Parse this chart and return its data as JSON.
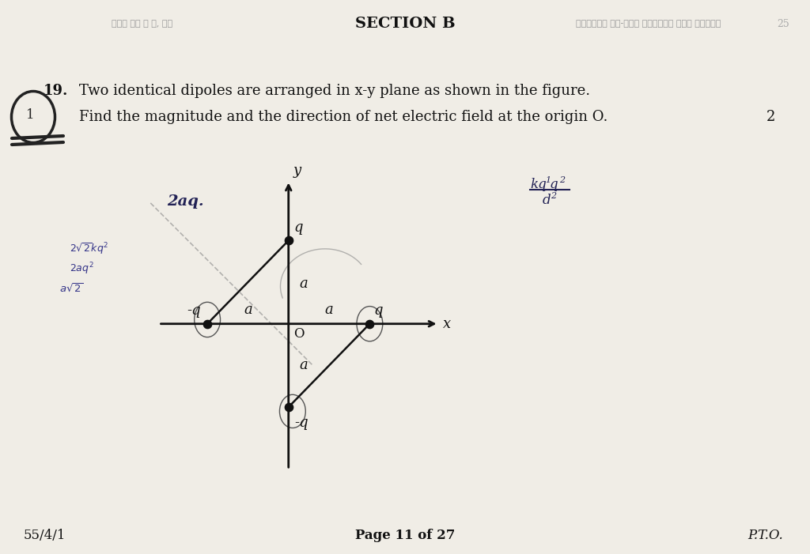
{
  "bg_color": "#e8e4dc",
  "page_bg": "#f0ede6",
  "title": "SECTION B",
  "q_num": "19.",
  "q_line1": "Two identical dipoles are arranged in x-y plane as shown in the figure.",
  "q_line2": "Find the magnitude and the direction of net electric field at the origin O.",
  "marks": "2",
  "footer_left": "55/4/1",
  "footer_center": "Page 11 of 27",
  "footer_right": "P.T.O.",
  "note_2aq": "2aq.",
  "lc": "#111111",
  "dc": "#111111",
  "tc": "#111111",
  "handwrite_color": "#222255",
  "scribble_color": "#333388"
}
